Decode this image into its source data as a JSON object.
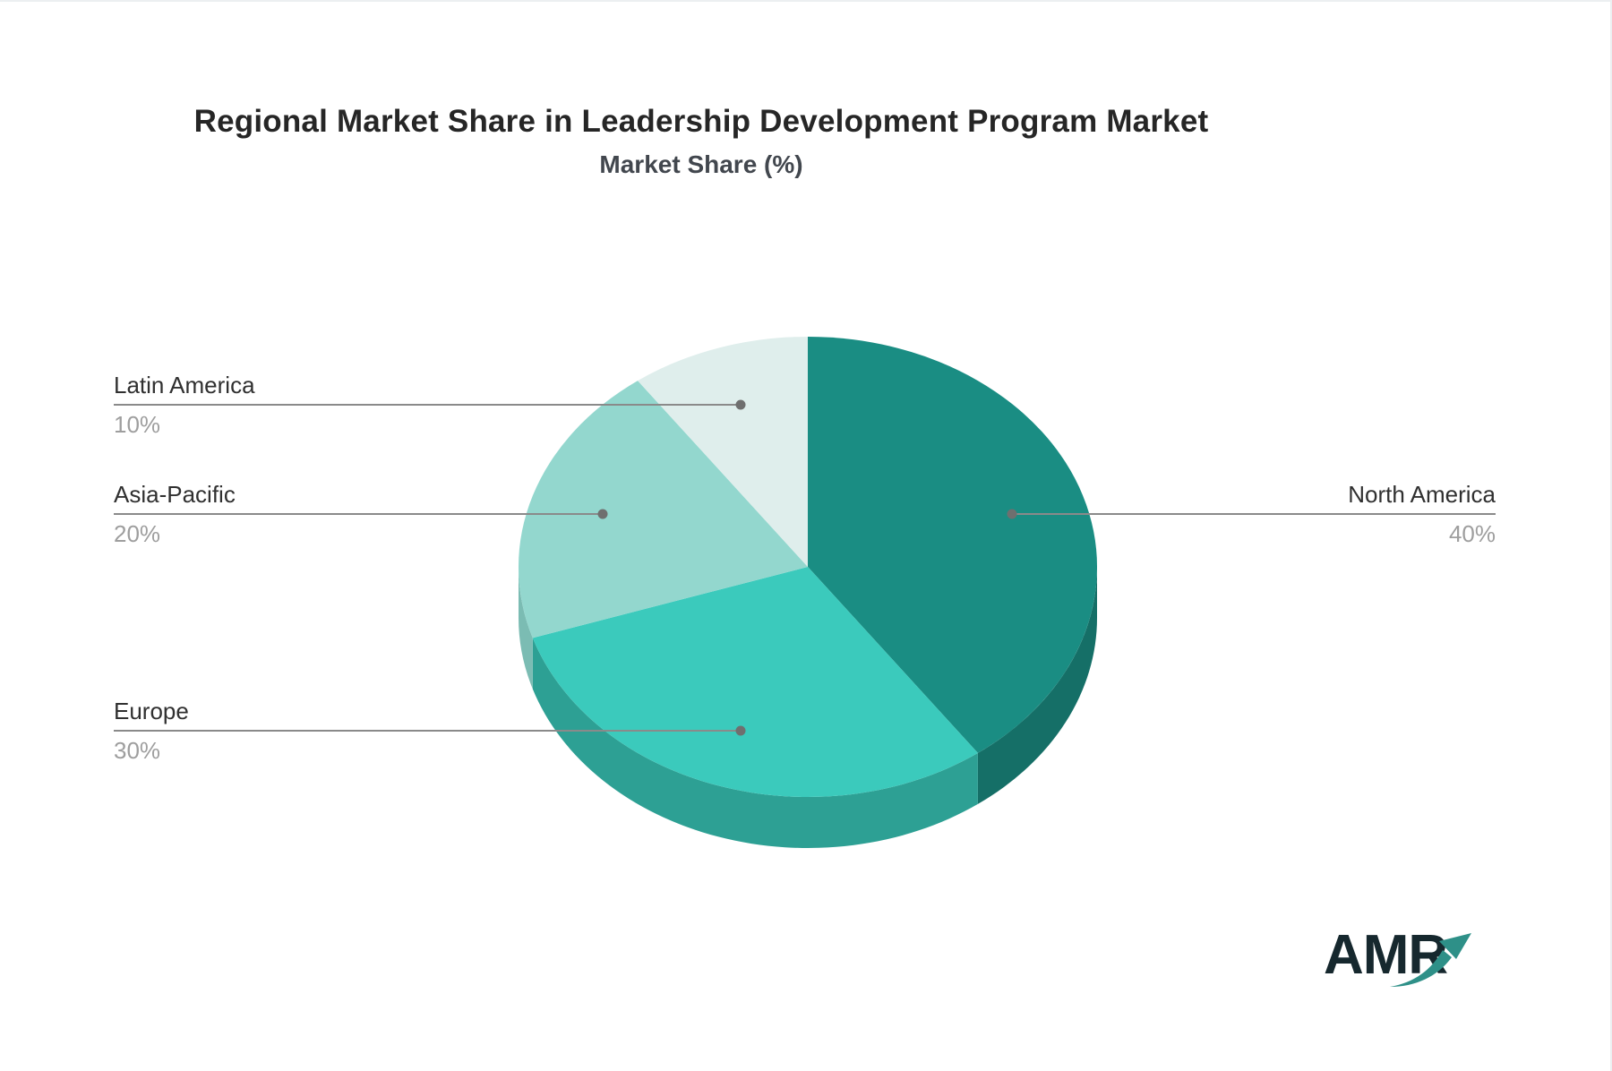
{
  "header": {
    "title": "Regional Market Share in Leadership Development Program Market",
    "subtitle": "Market Share (%)"
  },
  "chart_data": {
    "type": "pie",
    "style": "3d-pie",
    "title": "Regional Market Share in Leadership Development Program Market",
    "subtitle": "Market Share (%)",
    "start_angle_deg": 90,
    "direction": "clockwise",
    "slices": [
      {
        "label": "North America",
        "value": 40,
        "display": "40%",
        "color": "#1a8d83",
        "side_color": "#156f67"
      },
      {
        "label": "Europe",
        "value": 30,
        "display": "30%",
        "color": "#3bcabc",
        "side_color": "#2da094"
      },
      {
        "label": "Asia-Pacific",
        "value": 20,
        "display": "20%",
        "color": "#93d7ce",
        "side_color": "#7bbcb3"
      },
      {
        "label": "Latin America",
        "value": 10,
        "display": "10%",
        "color": "#dfeeec",
        "side_color": "#c9e2de"
      }
    ],
    "legend_position": "callout-labels",
    "grid": false
  },
  "colors": {
    "title": "#262626",
    "subtitle": "#42474e",
    "label_text": "#303030",
    "value_text": "#9e9e9e",
    "leader_line": "#8a8a8a",
    "dot": "#6f6f6f",
    "page_border": "#eceff1",
    "logo_text": "#16282e",
    "logo_arrow": "#2e9088"
  },
  "logo": {
    "text": "AMR"
  }
}
